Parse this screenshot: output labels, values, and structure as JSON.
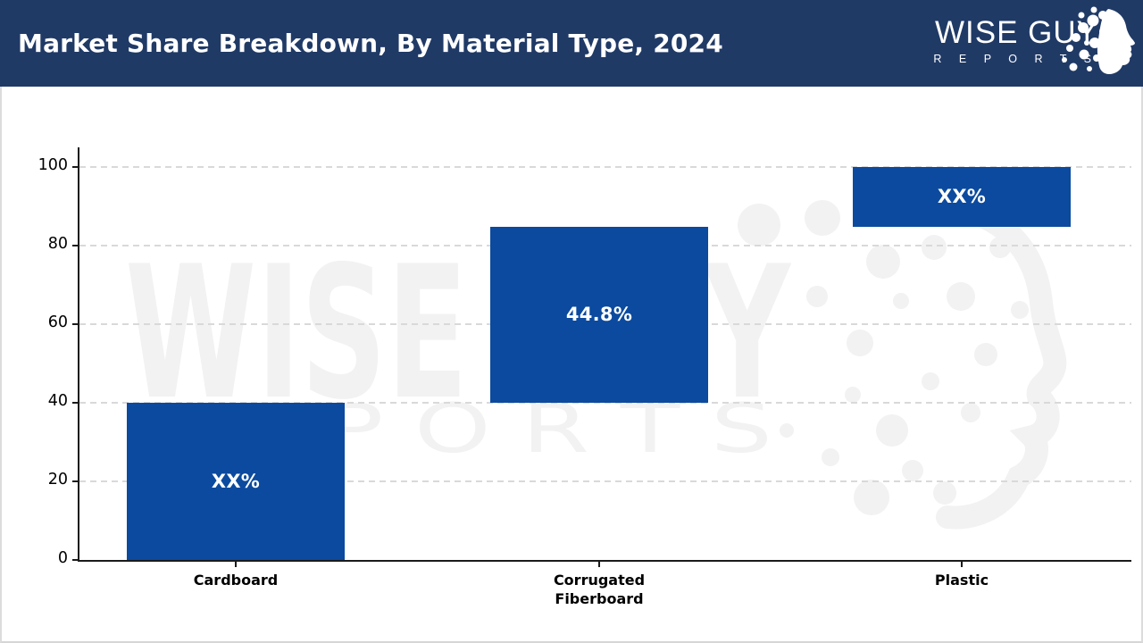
{
  "header": {
    "title": "Market Share Breakdown, By Material Type, 2024",
    "logo": {
      "line1": "WISE GUY",
      "line2": "R E P O R T S"
    }
  },
  "watermark": {
    "line1": "WISE GUY",
    "line2": "R E P O R T S"
  },
  "chart_data": {
    "type": "bar",
    "variant": "floating-stacked-segments",
    "title": "Market Share Breakdown, By Material Type, 2024",
    "categories": [
      "Cardboard",
      "Corrugated Fiberboard",
      "Plastic"
    ],
    "categories_display": [
      "Cardboard",
      "Corrugated\nFiberboard",
      "Plastic"
    ],
    "segments": [
      {
        "category": "Cardboard",
        "start": 0,
        "end": 40,
        "label": "XX%"
      },
      {
        "category": "Corrugated Fiberboard",
        "start": 40,
        "end": 84.8,
        "label": "44.8%"
      },
      {
        "category": "Plastic",
        "start": 84.8,
        "end": 100,
        "label": "XX%"
      }
    ],
    "yticks": [
      0,
      20,
      40,
      60,
      80,
      100
    ],
    "ylim": [
      0,
      105
    ],
    "xlabel": "",
    "ylabel": "",
    "grid": "dashed-horizontal",
    "legend": "none",
    "bar_color": "#0b4a9e",
    "value_label_color": "#ffffff"
  },
  "colors": {
    "header_bg": "#203a66",
    "bar": "#0b4a9e",
    "gridline": "#d9d9d9",
    "axis": "#1a1a1a",
    "watermark": "#f2f2f2"
  }
}
